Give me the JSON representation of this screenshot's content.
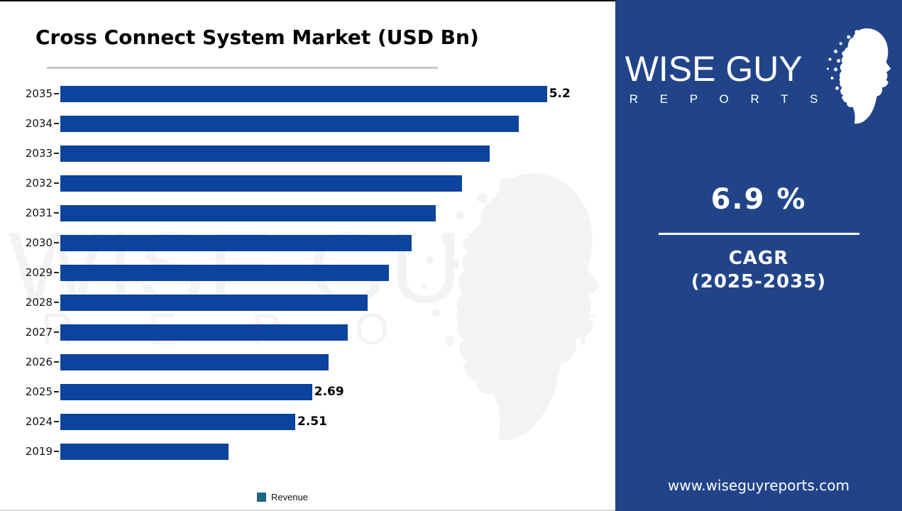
{
  "chart_data": {
    "type": "bar",
    "orientation": "horizontal",
    "title": "Cross Connect System Market (USD Bn)",
    "series_name": "Revenue",
    "categories": [
      "2035",
      "2034",
      "2033",
      "2032",
      "2031",
      "2030",
      "2029",
      "2028",
      "2027",
      "2026",
      "2025",
      "2024",
      "2019"
    ],
    "values": [
      5.2,
      4.9,
      4.59,
      4.29,
      4.01,
      3.75,
      3.51,
      3.28,
      3.07,
      2.87,
      2.69,
      2.51,
      1.8
    ],
    "data_labels": [
      "5.2",
      "",
      "",
      "",
      "",
      "",
      "",
      "",
      "",
      "",
      "2.69",
      "2.51",
      ""
    ],
    "xlim": [
      0,
      5.93
    ],
    "xlabel": "",
    "ylabel": "",
    "grid": false,
    "legend_position": "bottom-center",
    "bar_color": "#0c439c",
    "legend_swatch_color": "#1e6484"
  },
  "watermark": {
    "line1": "WISE GUY",
    "line2": "R E P O R T S"
  },
  "brand": {
    "logo_line1": "WISE GUY",
    "logo_line2": "R E P O R T S",
    "cagr_value": "6.9 %",
    "cagr_label": "CAGR",
    "cagr_range": "(2025-2035)",
    "website": "www.wiseguyreports.com",
    "panel_color": "#214489",
    "text_color": "#ffffff"
  },
  "icons": {
    "logo_head": "dotted-head-profile-icon"
  }
}
